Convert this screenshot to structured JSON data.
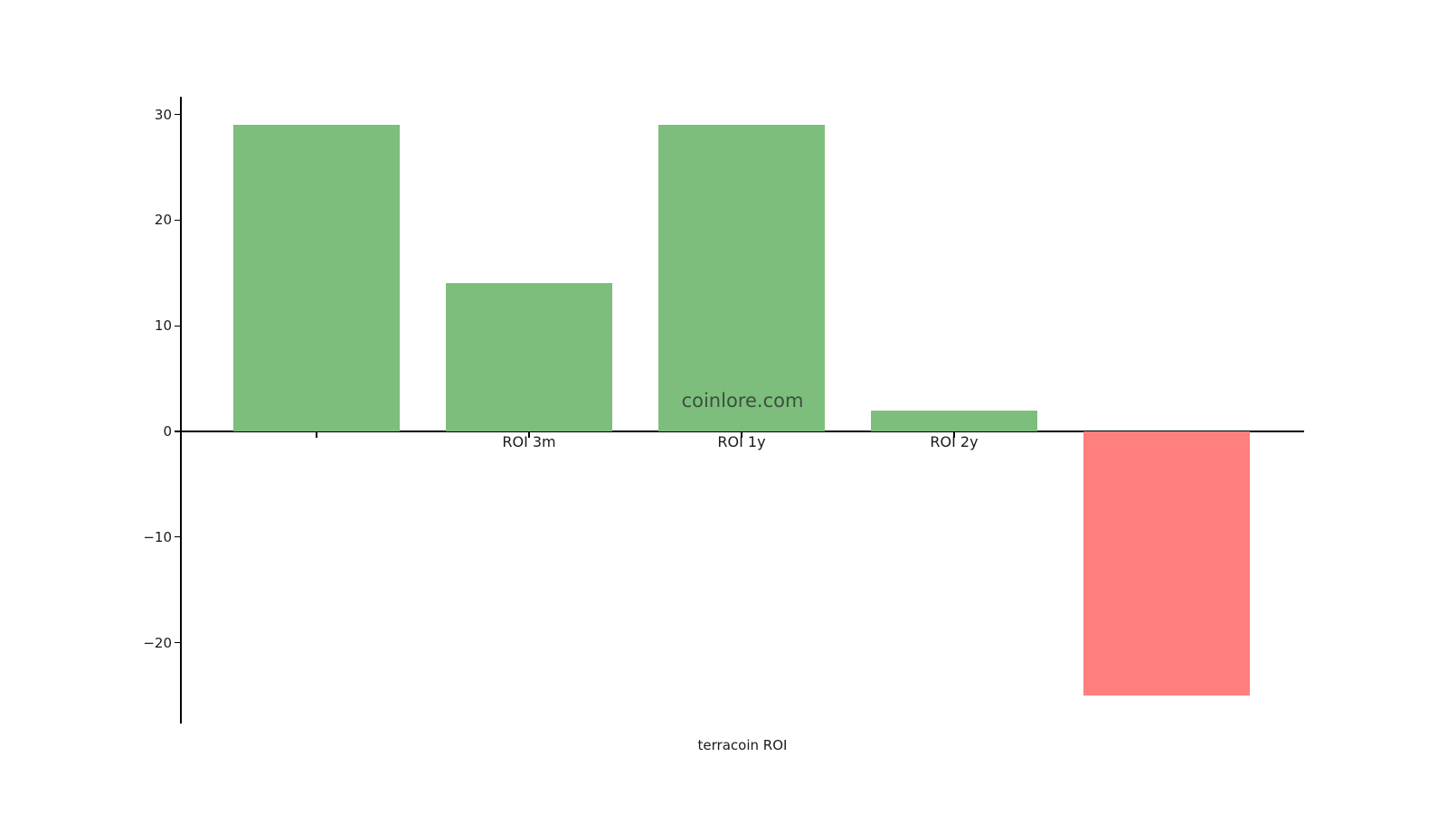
{
  "chart_data": {
    "type": "bar",
    "title": "",
    "xlabel": "terracoin ROI",
    "ylabel": "",
    "watermark": "coinlore.com",
    "categories": [
      "",
      "ROI 3m",
      "ROI 1y",
      "ROI 2y",
      ""
    ],
    "values": [
      29,
      14,
      29,
      2,
      -25
    ],
    "bar_sentiment": [
      "positive",
      "positive",
      "positive",
      "positive",
      "negative"
    ],
    "positive_color": "#7dbe7d",
    "negative_color": "#ff7f7f",
    "axis_color": "#000000",
    "yticks": [
      {
        "v": 30,
        "label": "30"
      },
      {
        "v": 20,
        "label": "20"
      },
      {
        "v": 10,
        "label": "10"
      },
      {
        "v": 0,
        "label": "0"
      },
      {
        "v": -10,
        "label": "−10"
      },
      {
        "v": -20,
        "label": "−20"
      }
    ],
    "xtick_indices": [
      0,
      1,
      2,
      3
    ],
    "ylim": [
      -27.7,
      31.7
    ],
    "grid": false,
    "legend": "none"
  }
}
